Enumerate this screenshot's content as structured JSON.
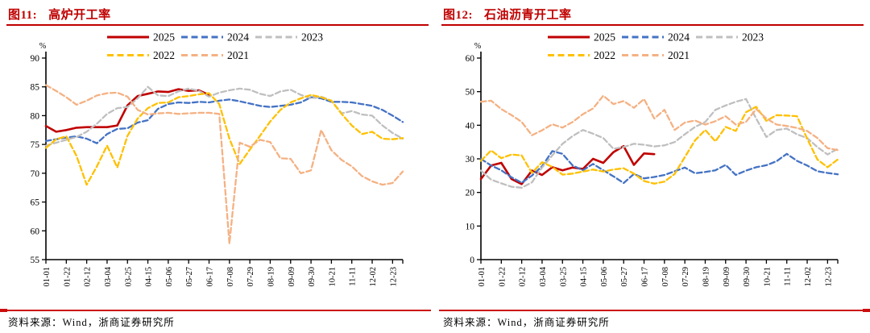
{
  "page": {
    "background": "#ffffff",
    "accent_red": "#c00000"
  },
  "figures": [
    {
      "title_label": "图11:",
      "title_text": "高炉开工率",
      "source": "资料来源：Wind，浙商证券研究所"
    },
    {
      "title_label": "图12:",
      "title_text": "石油沥青开工率",
      "source": "资料来源：Wind，浙商证券研究所"
    }
  ],
  "chart_data": [
    {
      "type": "line",
      "title": "高炉开工率",
      "unit": "%",
      "ylim": [
        55,
        90
      ],
      "ytick_step": 5,
      "grid": false,
      "legend_position": "top",
      "legend_rows": [
        [
          "2025",
          "2024",
          "2023"
        ],
        [
          "2022",
          "2021"
        ]
      ],
      "x_tick_labels": [
        "01-01",
        "01-22",
        "02-12",
        "03-04",
        "03-25",
        "04-15",
        "05-06",
        "05-27",
        "06-17",
        "07-08",
        "07-29",
        "08-19",
        "09-09",
        "09-30",
        "10-21",
        "11-11",
        "12-02",
        "12-23"
      ],
      "x_note": "two samples per labeled tick (~10.5 day spacing)",
      "series": [
        {
          "name": "2025",
          "color": "#c00000",
          "dash": false,
          "values": [
            78.2,
            77.2,
            77.5,
            77.9,
            78.0,
            78.0,
            78.0,
            78.3,
            81.8,
            83.4,
            83.8,
            84.2,
            84.1,
            84.6,
            84.3,
            84.4,
            83.6
          ]
        },
        {
          "name": "2024",
          "color": "#4472c4",
          "dash": true,
          "values": [
            75.6,
            75.9,
            76.2,
            76.4,
            76.0,
            75.2,
            76.8,
            77.7,
            77.8,
            78.8,
            79.2,
            81.2,
            82.0,
            82.3,
            82.2,
            82.4,
            82.3,
            82.6,
            82.8,
            82.5,
            82.1,
            81.7,
            81.5,
            81.7,
            81.9,
            82.3,
            83.2,
            83.0,
            82.4,
            82.4,
            82.3,
            82.0,
            81.7,
            81.0,
            80.0,
            78.9
          ]
        },
        {
          "name": "2023",
          "color": "#bfbfbf",
          "dash": true,
          "values": [
            74.8,
            75.3,
            75.8,
            76.3,
            77.2,
            78.6,
            80.3,
            81.3,
            81.5,
            83.0,
            85.0,
            83.5,
            83.4,
            84.2,
            84.7,
            84.3,
            83.3,
            84.0,
            84.4,
            84.7,
            84.5,
            83.8,
            83.4,
            84.2,
            84.5,
            83.6,
            83.0,
            83.3,
            82.6,
            80.4,
            80.8,
            80.2,
            80.0,
            78.3,
            77.0,
            76.0
          ]
        },
        {
          "name": "2022",
          "color": "#ffc000",
          "dash": true,
          "values": [
            74.4,
            75.9,
            76.4,
            73.0,
            68.0,
            71.2,
            74.8,
            71.0,
            76.5,
            79.5,
            81.3,
            82.2,
            82.3,
            83.2,
            83.4,
            83.7,
            83.9,
            82.0,
            76.0,
            71.6,
            74.1,
            76.5,
            79.0,
            81.0,
            82.3,
            83.0,
            83.6,
            83.2,
            82.6,
            80.3,
            78.3,
            76.8,
            77.2,
            76.0,
            75.9,
            76.1
          ]
        },
        {
          "name": "2021",
          "color": "#f4b183",
          "dash": true,
          "values": [
            85.3,
            84.3,
            83.2,
            81.9,
            82.6,
            83.5,
            83.9,
            84.0,
            83.3,
            81.0,
            80.2,
            80.4,
            80.5,
            80.3,
            80.4,
            80.5,
            80.5,
            80.3,
            57.8,
            75.3,
            74.6,
            75.8,
            75.4,
            72.6,
            72.5,
            70.0,
            70.5,
            77.5,
            74.0,
            72.3,
            71.2,
            69.5,
            68.6,
            68.0,
            68.3,
            70.3
          ]
        }
      ]
    },
    {
      "type": "line",
      "title": "石油沥青开工率",
      "unit": "%",
      "ylim": [
        0,
        60
      ],
      "ytick_step": 10,
      "grid": false,
      "legend_position": "top",
      "legend_rows": [
        [
          "2025",
          "2024",
          "2023"
        ],
        [
          "2022",
          "2021"
        ]
      ],
      "x_tick_labels": [
        "01-01",
        "01-22",
        "02-12",
        "03-04",
        "03-25",
        "04-15",
        "05-06",
        "05-27",
        "06-17",
        "07-08",
        "07-29",
        "08-19",
        "09-09",
        "09-30",
        "10-21",
        "11-11",
        "12-02",
        "12-23"
      ],
      "x_note": "two samples per labeled tick (~10.5 day spacing)",
      "series": [
        {
          "name": "2025",
          "color": "#c00000",
          "dash": false,
          "values": [
            24.0,
            28.0,
            28.8,
            24.0,
            22.5,
            26.5,
            25.2,
            27.5,
            26.6,
            27.4,
            27.0,
            30.0,
            28.8,
            32.0,
            33.8,
            28.2,
            31.6,
            31.4
          ]
        },
        {
          "name": "2024",
          "color": "#4472c4",
          "dash": true,
          "values": [
            30.0,
            28.0,
            26.6,
            24.5,
            22.9,
            25.0,
            27.8,
            32.3,
            31.5,
            28.0,
            26.6,
            28.5,
            26.6,
            24.8,
            22.8,
            25.5,
            24.2,
            24.6,
            25.2,
            26.3,
            27.4,
            25.7,
            26.1,
            26.6,
            28.2,
            25.2,
            26.5,
            27.5,
            28.1,
            29.3,
            31.5,
            29.4,
            28.0,
            26.3,
            25.8,
            25.4
          ]
        },
        {
          "name": "2023",
          "color": "#bfbfbf",
          "dash": true,
          "values": [
            26.5,
            23.8,
            22.7,
            21.7,
            21.4,
            23.0,
            27.4,
            31.0,
            34.5,
            36.8,
            38.6,
            37.5,
            36.2,
            33.0,
            33.5,
            34.5,
            34.2,
            33.7,
            34.0,
            35.0,
            37.3,
            39.5,
            41.0,
            44.6,
            45.9,
            47.0,
            47.8,
            42.0,
            36.5,
            38.6,
            39.0,
            37.3,
            36.2,
            33.5,
            31.3,
            33.0
          ]
        },
        {
          "name": "2022",
          "color": "#ffc000",
          "dash": true,
          "values": [
            29.4,
            32.5,
            30.2,
            31.3,
            31.0,
            25.8,
            29.0,
            27.6,
            25.3,
            25.6,
            26.2,
            26.8,
            26.2,
            26.8,
            27.2,
            25.6,
            23.4,
            22.6,
            23.2,
            25.5,
            30.5,
            35.5,
            38.6,
            35.2,
            39.5,
            38.3,
            43.9,
            45.5,
            41.3,
            43.0,
            42.9,
            42.7,
            36.0,
            29.8,
            27.5,
            29.8
          ]
        },
        {
          "name": "2021",
          "color": "#f4b183",
          "dash": true,
          "values": [
            47.0,
            47.3,
            44.8,
            43.0,
            41.0,
            37.0,
            38.5,
            40.3,
            39.3,
            41.0,
            43.3,
            45.0,
            48.8,
            46.3,
            47.2,
            45.2,
            47.8,
            42.0,
            44.6,
            38.6,
            40.8,
            41.4,
            40.2,
            41.2,
            42.7,
            40.2,
            41.0,
            44.8,
            42.0,
            40.2,
            39.8,
            39.2,
            38.3,
            36.2,
            33.2,
            32.6
          ]
        }
      ]
    }
  ]
}
